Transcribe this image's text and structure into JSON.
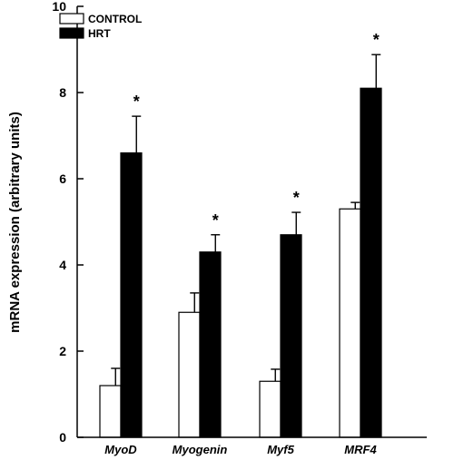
{
  "chart_data": {
    "type": "bar",
    "categories": [
      "MyoD",
      "Myogenin",
      "Myf5",
      "MRF4"
    ],
    "series": [
      {
        "name": "CONTROL",
        "values": [
          1.2,
          2.9,
          1.3,
          5.3
        ],
        "errors": [
          0.4,
          0.45,
          0.28,
          0.15
        ],
        "fill": "#ffffff"
      },
      {
        "name": "HRT",
        "values": [
          6.6,
          4.3,
          4.7,
          8.1
        ],
        "errors": [
          0.85,
          0.4,
          0.52,
          0.78
        ],
        "fill": "#000000"
      }
    ],
    "significance": [
      "*",
      "*",
      "*",
      "*"
    ],
    "ylabel": "mRNA expression (arbitrary units)",
    "ylim": [
      0,
      10
    ],
    "yticks": [
      0,
      2,
      4,
      6,
      8,
      10
    ],
    "legend_position": "top-left",
    "grid": false
  }
}
